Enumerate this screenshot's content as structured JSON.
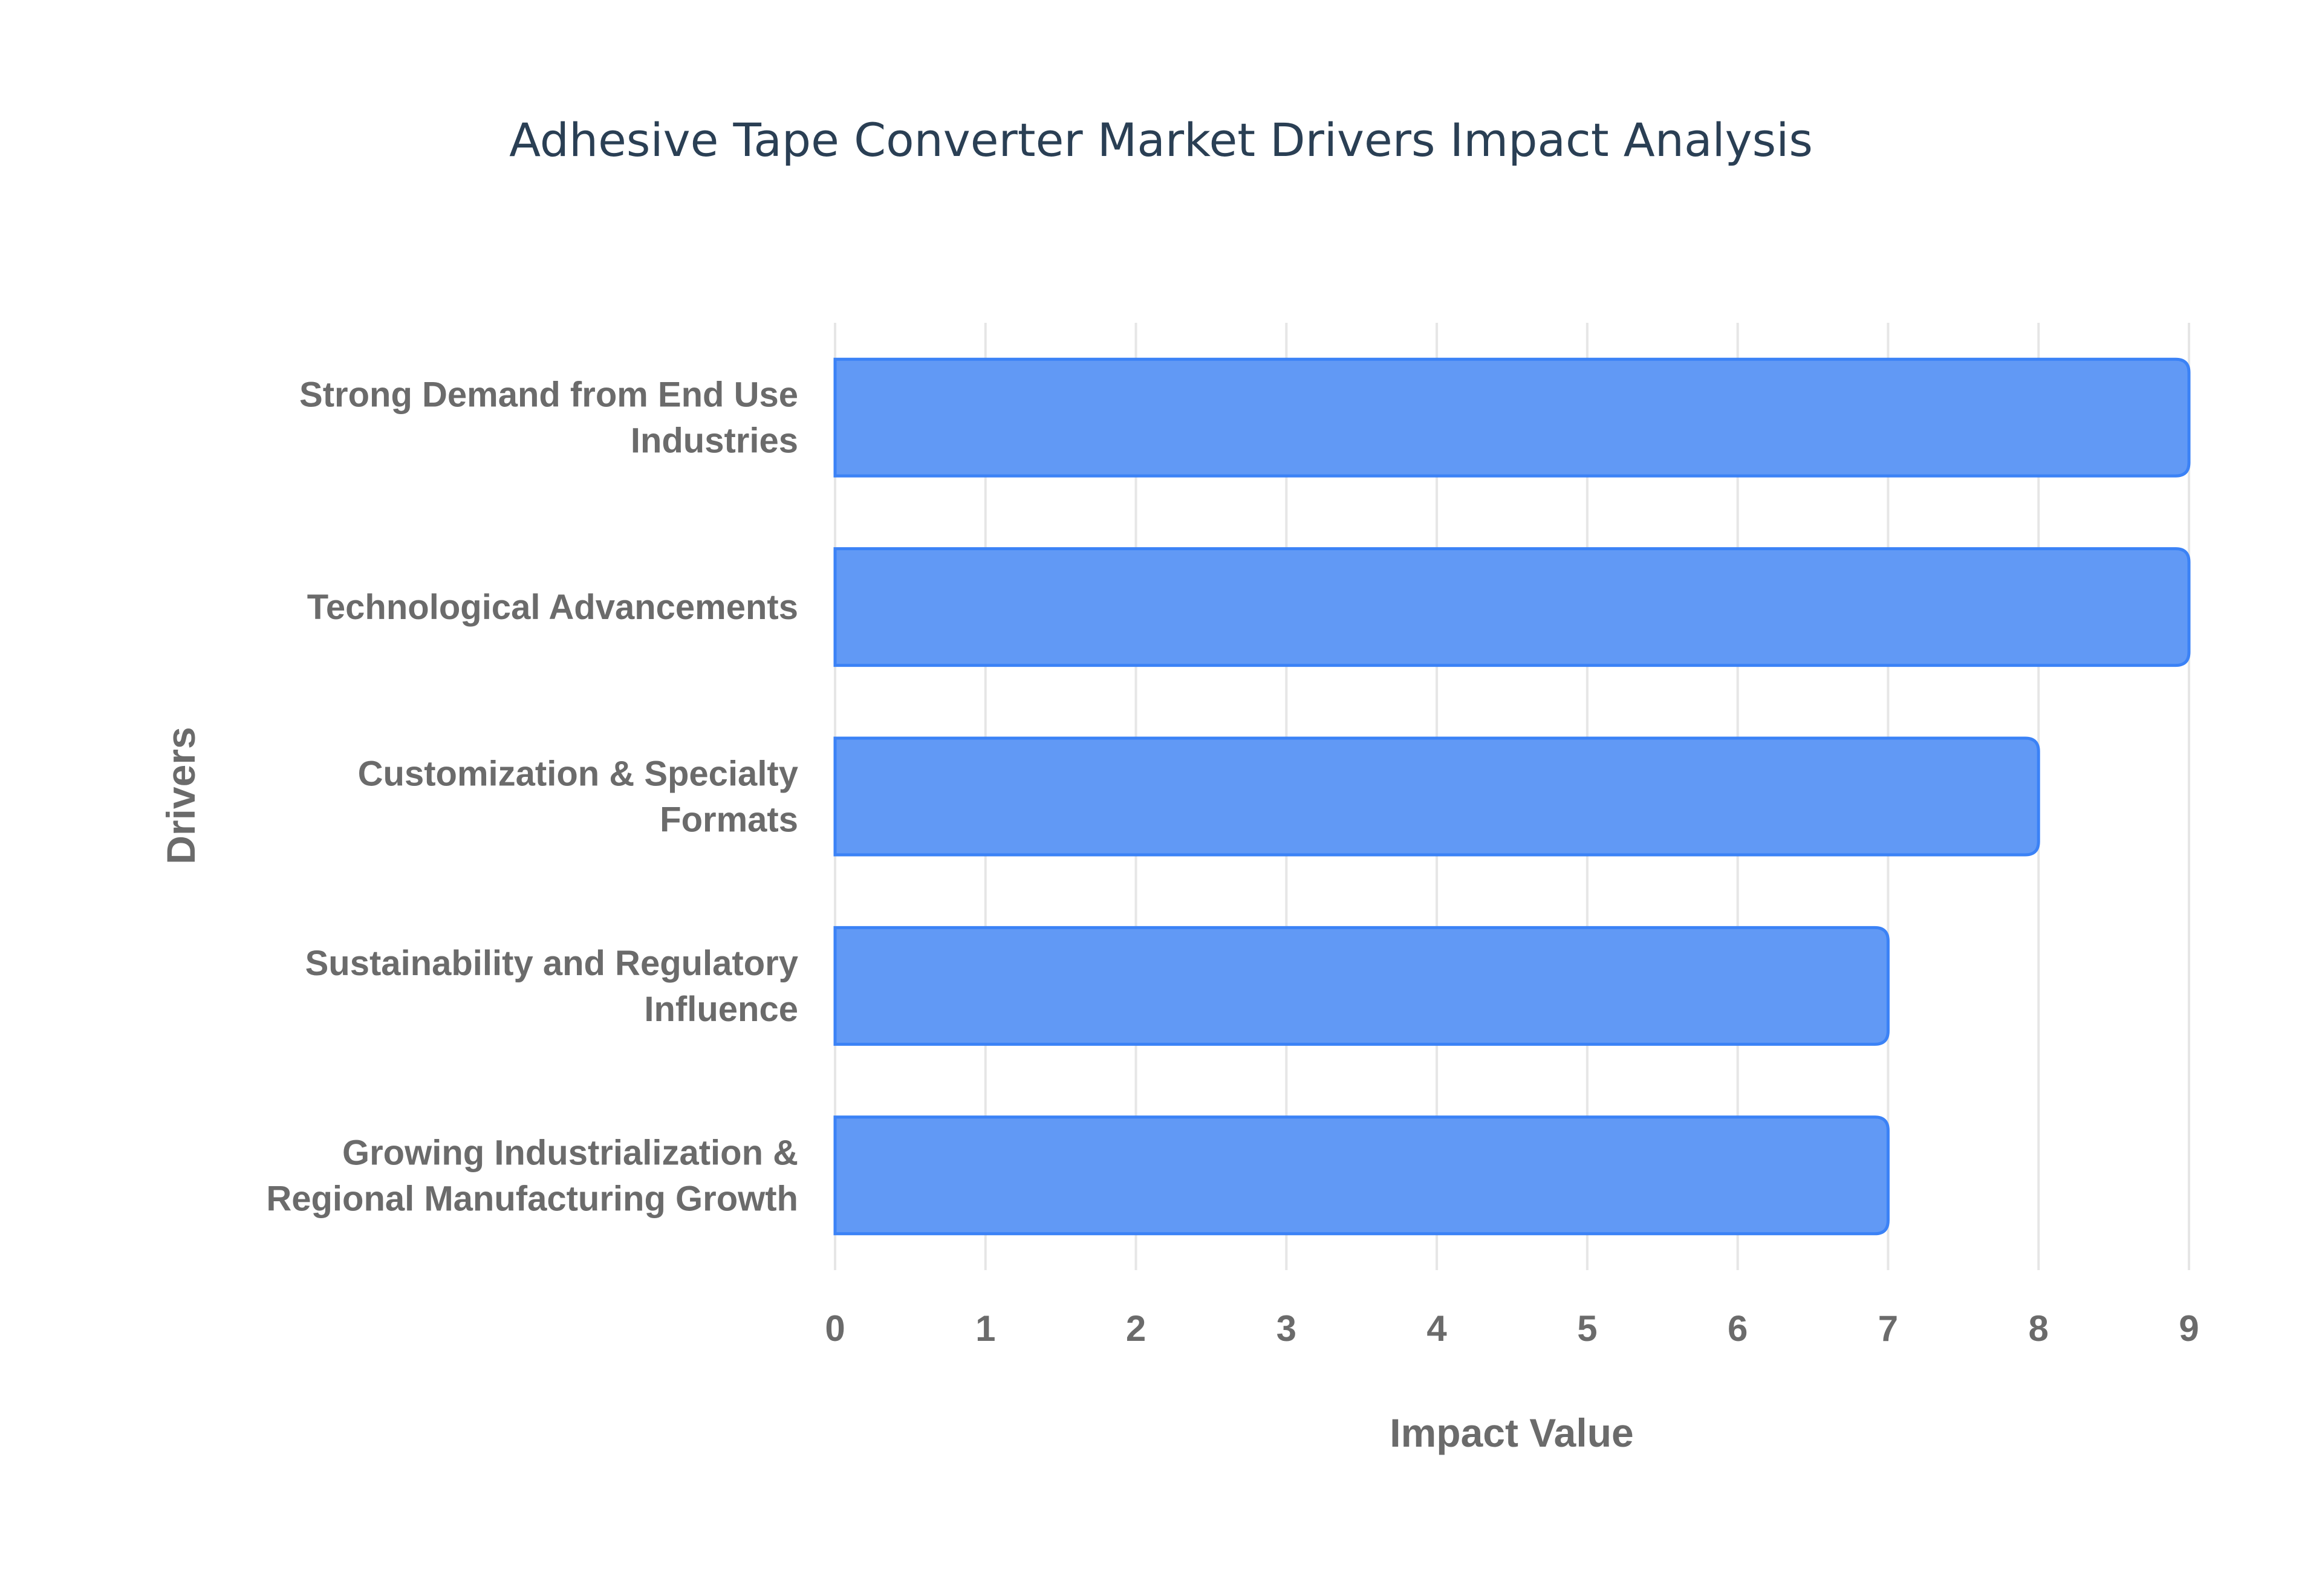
{
  "chart_data": {
    "type": "bar",
    "orientation": "horizontal",
    "title": "Adhesive Tape Converter Market Drivers Impact Analysis",
    "xlabel": "Impact Value",
    "ylabel": "Drivers",
    "xlim": [
      0,
      9
    ],
    "xticks": [
      "0",
      "1",
      "2",
      "3",
      "4",
      "5",
      "6",
      "7",
      "8",
      "9"
    ],
    "grid": true,
    "categories": [
      [
        "Strong Demand from End Use",
        "Industries"
      ],
      [
        "Technological Advancements"
      ],
      [
        "Customization & Specialty",
        "Formats"
      ],
      [
        "Sustainability and Regulatory",
        "Influence"
      ],
      [
        "Growing Industrialization &",
        "Regional Manufacturing Growth"
      ]
    ],
    "values": [
      9,
      9,
      8,
      7,
      7
    ],
    "colors": {
      "bar_fill": "#6199f5",
      "bar_border": "#3b82f6",
      "grid": "#e6e6e6"
    }
  }
}
